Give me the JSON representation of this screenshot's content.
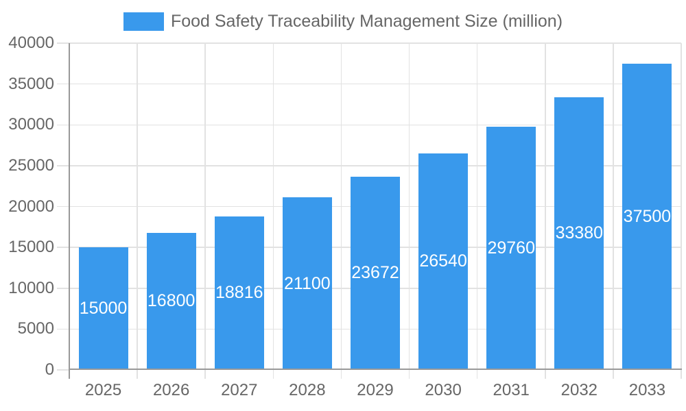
{
  "chart_data": {
    "type": "bar",
    "title": "Food Safety Traceability Management Size (million)",
    "legend_position": "top",
    "categories": [
      "2025",
      "2026",
      "2027",
      "2028",
      "2029",
      "2030",
      "2031",
      "2032",
      "2033"
    ],
    "values": [
      15000,
      16800,
      18816,
      21100,
      23672,
      26540,
      29760,
      33380,
      37500
    ],
    "xlabel": "",
    "ylabel": "",
    "ylim": [
      0,
      40000
    ],
    "ytick_step": 5000,
    "yticks": [
      0,
      5000,
      10000,
      15000,
      20000,
      25000,
      30000,
      35000,
      40000
    ],
    "grid": true,
    "colors": {
      "bar": "#3999EC",
      "grid": "#E2E2E2",
      "axis": "#999999",
      "tick_label": "#666666",
      "value_label": "#FFFFFF",
      "background": "#FFFFFF"
    }
  }
}
